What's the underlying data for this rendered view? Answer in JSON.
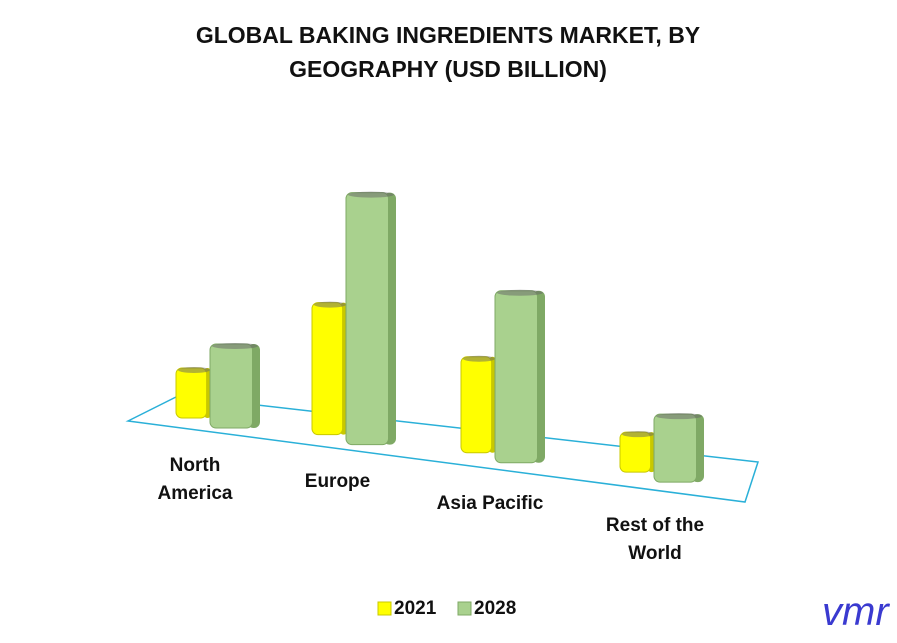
{
  "chart_data": {
    "type": "bar3d",
    "title": "GLOBAL BAKING INGREDIENTS MARKET, BY GEOGRAPHY (USD BILLION)",
    "categories": [
      "North America",
      "Europe",
      "Asia Pacific",
      "Rest of the World"
    ],
    "series": [
      {
        "name": "2021",
        "color": "#ffff00",
        "values": [
          1.25,
          3.3,
          2.4,
          1.0
        ]
      },
      {
        "name": "2028",
        "color": "#a9d18e",
        "values": [
          2.1,
          6.3,
          4.3,
          1.7
        ]
      }
    ],
    "logo": "vmr"
  }
}
